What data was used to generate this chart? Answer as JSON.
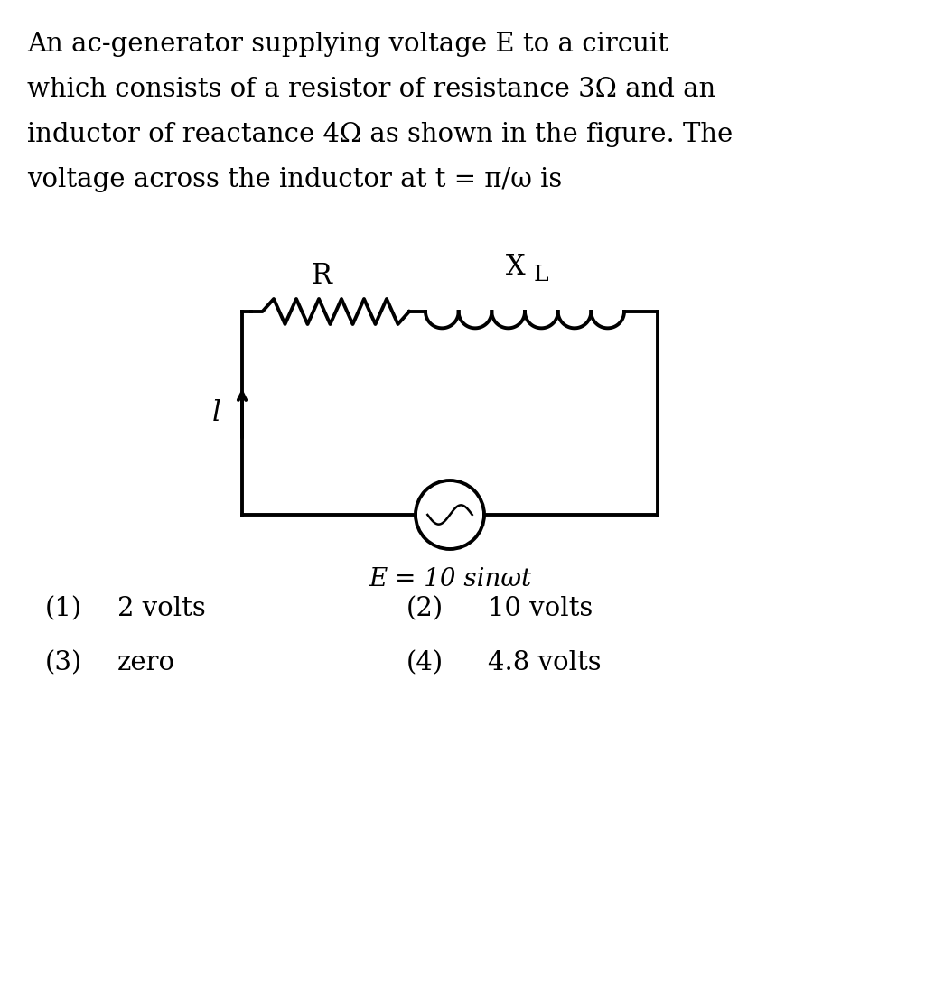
{
  "background_color": "#ffffff",
  "question_text_line1": "An ac-generator supplying voltage E to a circuit",
  "question_text_line2": "which consists of a resistor of resistance 3Ω and an",
  "question_text_line3": "inductor of reactance 4Ω as shown in the figure. The",
  "question_text_line4": "voltage across the inductor at t = π/ω is",
  "option1_num": "(1)",
  "option1_val": "2 volts",
  "option2_num": "(2)",
  "option2_val": "10 volts",
  "option3_num": "(3)",
  "option3_val": "zero",
  "option4_num": "(4)",
  "option4_val": "4.8 volts",
  "label_R": "R",
  "label_XL": "X",
  "label_L_sub": "L",
  "label_I": "l",
  "label_E": "E = 10 sinωt",
  "circuit_color": "#000000",
  "text_color": "#000000",
  "font_size_question": 21,
  "font_size_options": 21,
  "font_size_circuit_label": 20,
  "font_size_e_label": 20,
  "font_size_tilde": 18
}
